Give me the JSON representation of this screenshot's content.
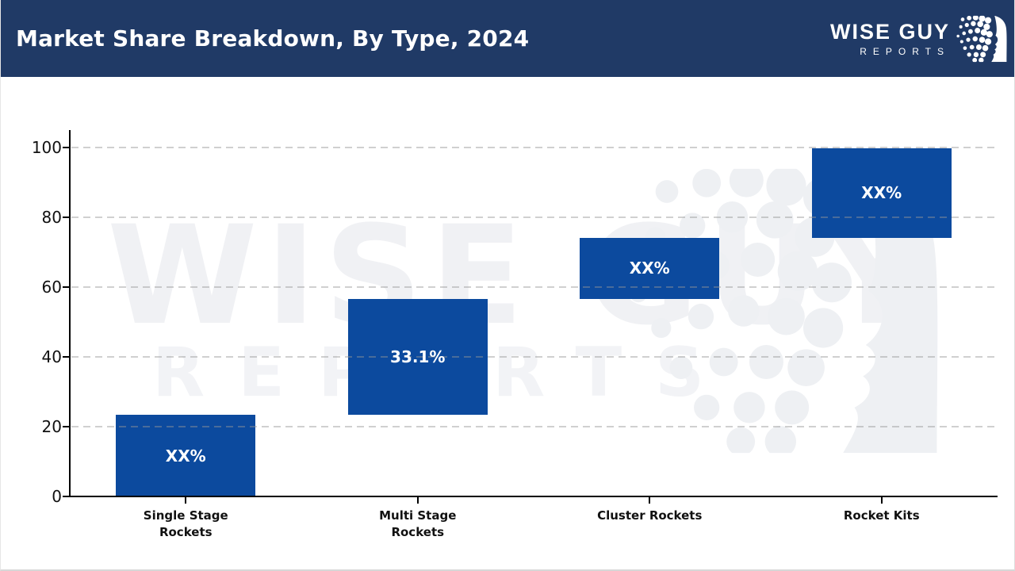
{
  "header": {
    "title": "Market Share Breakdown, By Type, 2024",
    "logo": {
      "primary": "WISE GUY",
      "secondary": "REPORTS"
    },
    "bg_color": "#203a66"
  },
  "watermark": {
    "primary": "WISE GUY",
    "secondary": "REPORTS"
  },
  "chart_data": {
    "type": "bar",
    "variant": "waterfall",
    "title": "Market Share Breakdown, By Type, 2024",
    "categories": [
      "Single Stage\nRockets",
      "Multi Stage\nRockets",
      "Cluster Rockets",
      "Rocket Kits"
    ],
    "bars": [
      {
        "category": "Single Stage Rockets",
        "start": 0,
        "end": 23.4,
        "value": 23.4,
        "label": "XX%"
      },
      {
        "category": "Multi Stage Rockets",
        "start": 23.4,
        "end": 56.5,
        "value": 33.1,
        "label": "33.1%"
      },
      {
        "category": "Cluster Rockets",
        "start": 56.5,
        "end": 74.2,
        "value": 17.7,
        "label": "XX%"
      },
      {
        "category": "Rocket Kits",
        "start": 74.2,
        "end": 99.8,
        "value": 25.6,
        "label": "XX%"
      }
    ],
    "y_ticks": [
      0,
      20,
      40,
      60,
      80,
      100
    ],
    "ylim": [
      0,
      105
    ],
    "xlabel": "",
    "ylabel": "",
    "legend": "none",
    "grid": "horizontal-dashed",
    "colors": {
      "bar": "#0c4a9e",
      "bar_label": "#ffffff",
      "grid": "#d9d9d9",
      "axis": "#000000",
      "header_bg": "#203a66",
      "watermark": "#f0f1f4"
    }
  }
}
